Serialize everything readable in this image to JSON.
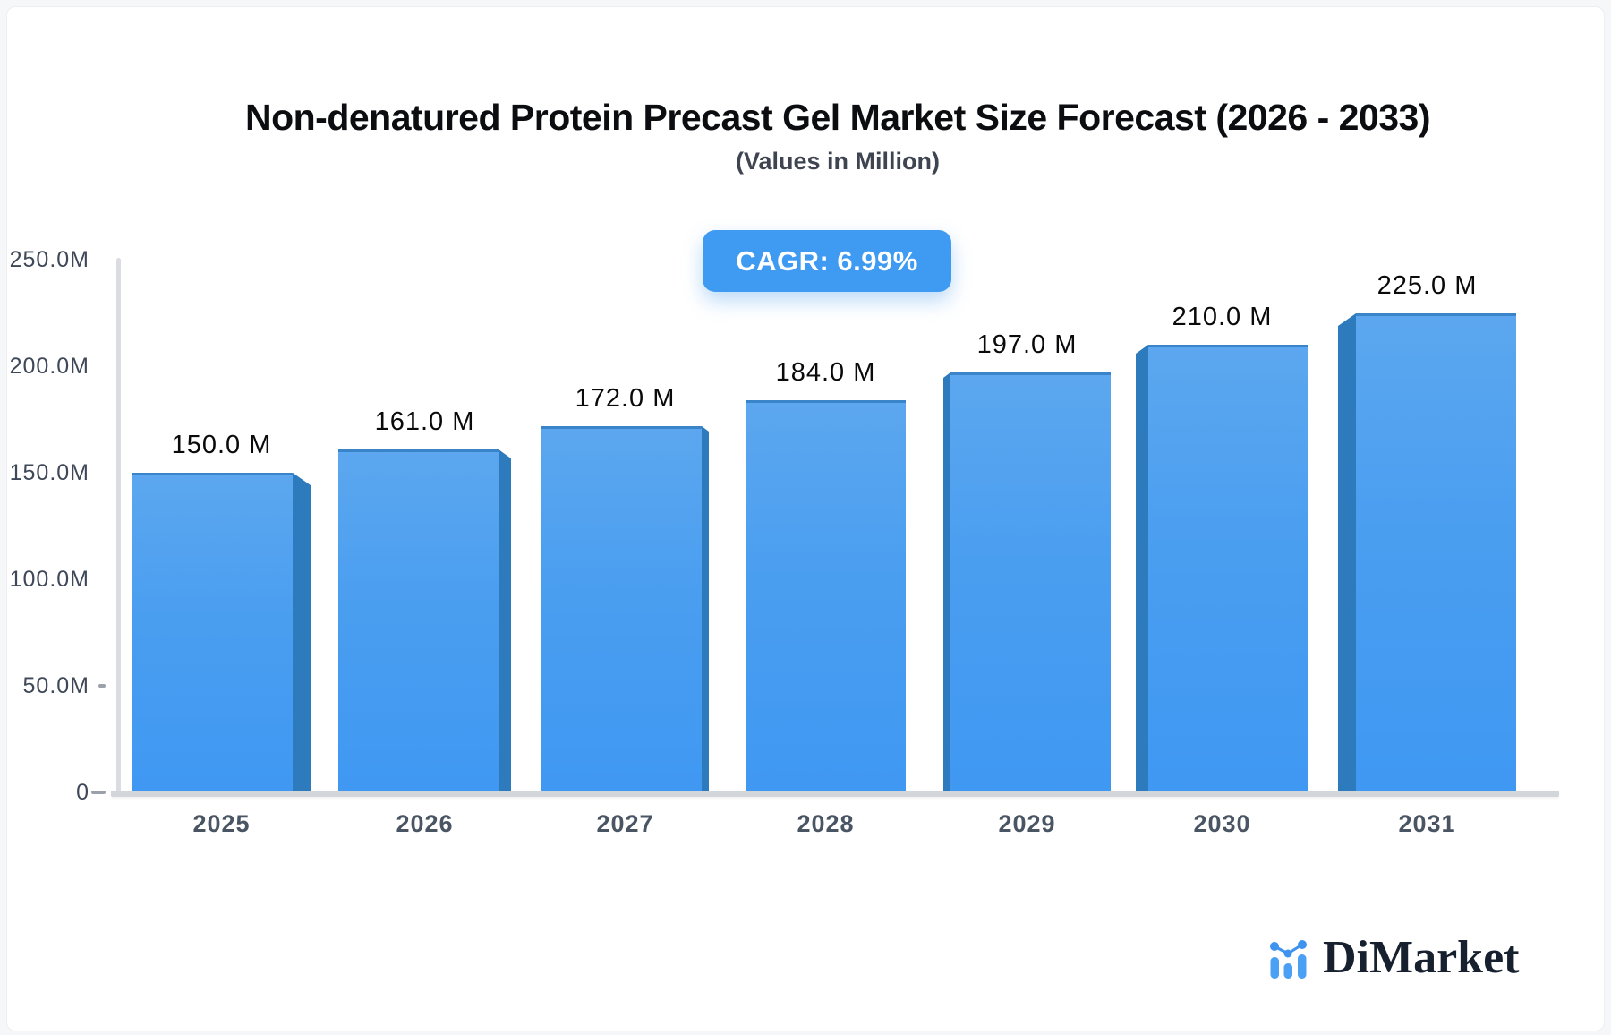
{
  "header": {
    "title": "Non-denatured Protein Precast Gel Market Size Forecast (2026 - 2033)",
    "subtitle": "(Values in Million)"
  },
  "badge": {
    "label": "CAGR: 6.99%",
    "background": "#3f9bf2",
    "text_color": "#ffffff"
  },
  "chart_data": {
    "type": "bar",
    "title": "Non-denatured Protein Precast Gel Market Size Forecast (2026 - 2033)",
    "subtitle": "(Values in Million)",
    "unit": "Million",
    "categories": [
      "2025",
      "2026",
      "2027",
      "2028",
      "2029",
      "2030",
      "2031"
    ],
    "values": [
      150.0,
      161.0,
      172.0,
      184.0,
      197.0,
      210.0,
      225.0
    ],
    "value_labels": [
      "150.0 M",
      "161.0 M",
      "172.0 M",
      "184.0 M",
      "197.0 M",
      "210.0 M",
      "225.0 M"
    ],
    "cagr": "6.99%",
    "xlabel": "",
    "ylabel": "",
    "ylim": [
      0,
      250
    ],
    "yticks": [
      250,
      200,
      150,
      100,
      50,
      0
    ],
    "ytick_labels": [
      "250.0M",
      "200.0M",
      "150.0M",
      "100.0M",
      "50.0M",
      "0"
    ],
    "grid": false,
    "legend": false,
    "bar_color_top": "#5ca7ef",
    "bar_color_bottom": "#3f98f2",
    "bar_side_color": "#2d7abd",
    "axis_color": "#d9dbe0",
    "style": "3d-extruded-bars"
  },
  "footer": {
    "brand": "DiMarket",
    "logo_icon": "bar-line-chart-icon",
    "brand_color": "#16202e",
    "icon_color": "#4aa0f4"
  }
}
